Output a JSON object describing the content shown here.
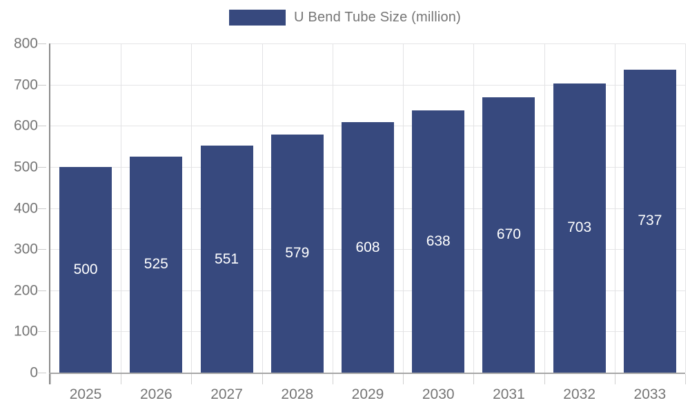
{
  "legend": {
    "label": "U Bend Tube Size (million)",
    "position": "top-center"
  },
  "colors": {
    "bar": "#37497E",
    "bar_label": "#ffffff",
    "axis_text": "#757575",
    "grid": "#e4e4e6",
    "axis_line_y": "#8a8a8a",
    "axis_line_x": "#a6a6a6",
    "background": "#ffffff"
  },
  "chart_data": {
    "type": "bar",
    "title": "U Bend Tube Size (million)",
    "categories": [
      "2025",
      "2026",
      "2027",
      "2028",
      "2029",
      "2030",
      "2031",
      "2032",
      "2033"
    ],
    "values": [
      500,
      525,
      551,
      579,
      608,
      638,
      670,
      703,
      737
    ],
    "xlabel": "",
    "ylabel": "",
    "ylim": [
      0,
      800
    ],
    "ytick_step": 100,
    "grid": true,
    "vertical_gridlines": true,
    "legend_position": "top-center",
    "value_labels": "inside-center-white"
  }
}
